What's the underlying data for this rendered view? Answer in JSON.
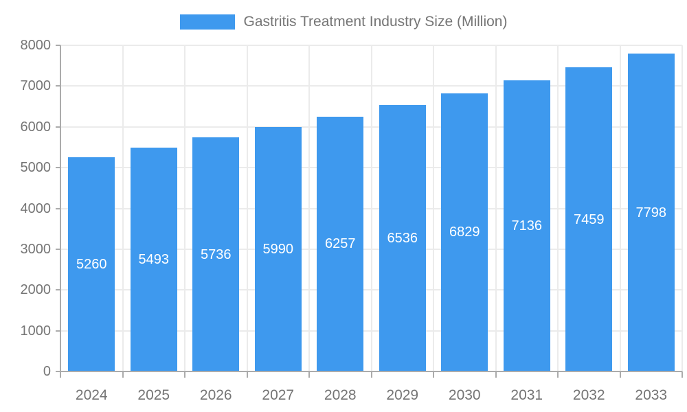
{
  "legend": {
    "label": "Gastritis Treatment Industry Size (Million)"
  },
  "chart_data": {
    "type": "bar",
    "title": "Gastritis Treatment Industry Size (Million)",
    "xlabel": "",
    "ylabel": "",
    "categories": [
      "2024",
      "2025",
      "2026",
      "2027",
      "2028",
      "2029",
      "2030",
      "2031",
      "2032",
      "2033"
    ],
    "series": [
      {
        "name": "Gastritis Treatment Industry Size (Million)",
        "values": [
          5260,
          5493,
          5736,
          5990,
          6257,
          6536,
          6829,
          7136,
          7459,
          7798
        ]
      }
    ],
    "value_labels_shown": true,
    "ylim": [
      0,
      8000
    ],
    "ytick_step": 1000,
    "ytick_labels": [
      "0",
      "1000",
      "2000",
      "3000",
      "4000",
      "5000",
      "6000",
      "7000",
      "8000"
    ],
    "grid": "on",
    "legend_position": "top"
  },
  "colors": {
    "bar": "#3E99EE",
    "grid": "#ebebeb",
    "axis": "#ababab",
    "text": "#757575",
    "value_label": "#ffffff",
    "background": "#ffffff"
  }
}
